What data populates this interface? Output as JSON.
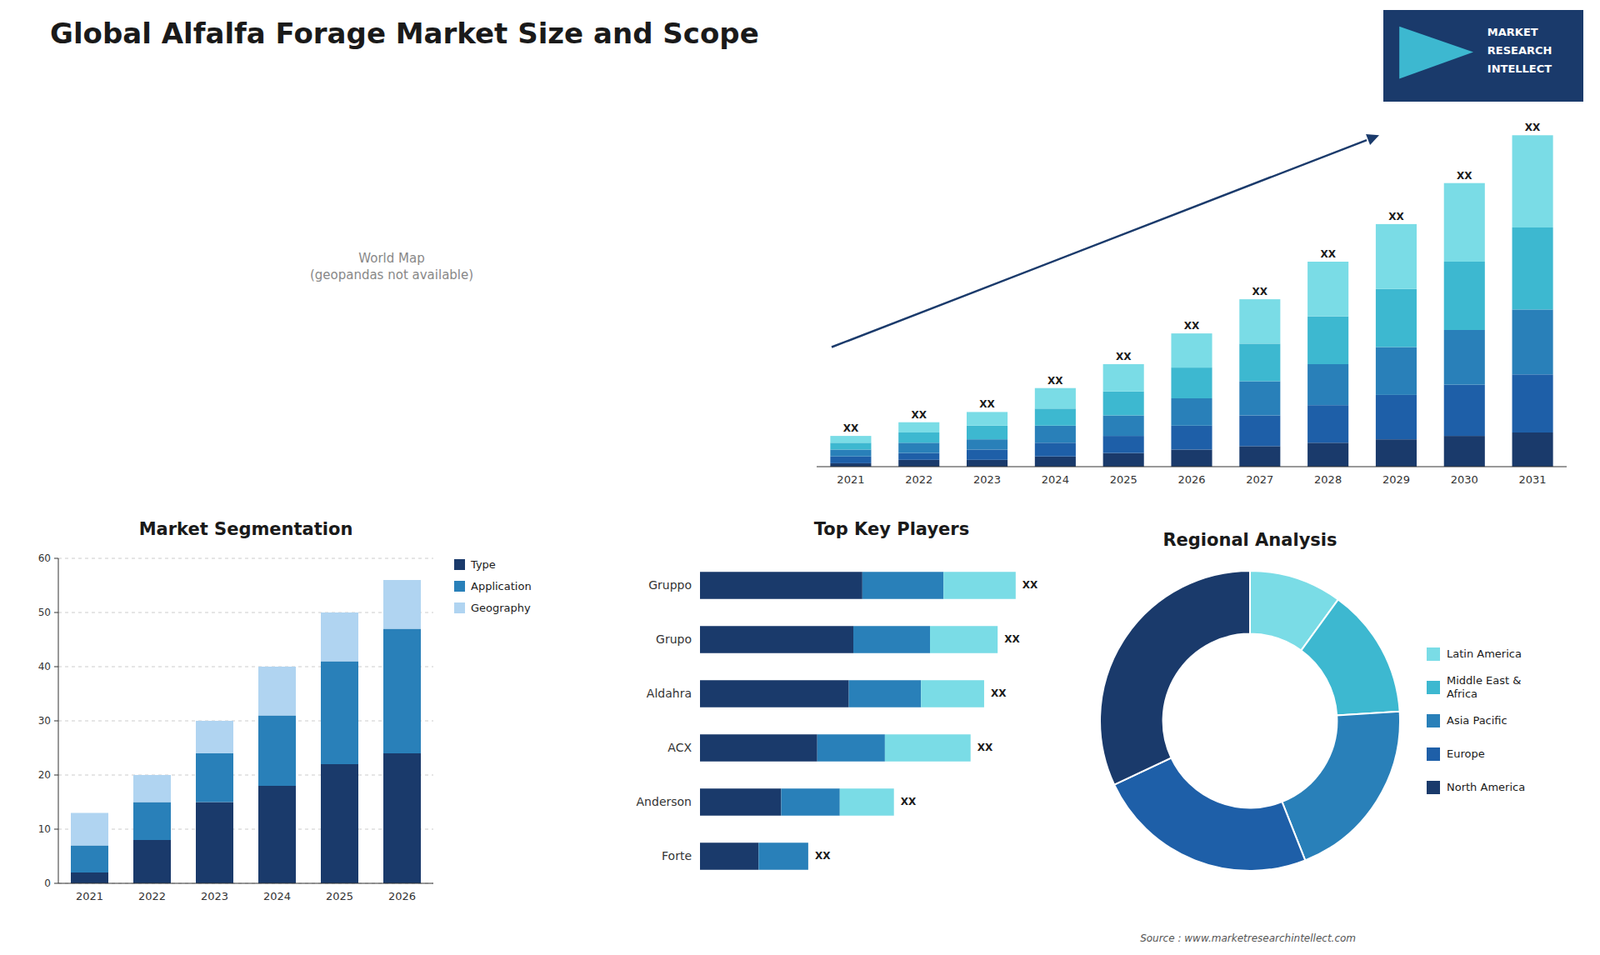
{
  "title": "Global  Alfalfa Forage Market Size and Scope",
  "annotations": [
    "Source : www.marketresearchintellect.com",
    "MARKET",
    "RESEARCH",
    "INTELLECT"
  ],
  "chart_data": [
    {
      "type": "bar",
      "stacked": true,
      "categories": [
        "2021",
        "2022",
        "2023",
        "2024",
        "2025",
        "2026",
        "2027",
        "2028",
        "2029",
        "2030",
        "2031"
      ],
      "series": [
        {
          "color": "#1a3a6b",
          "values": [
            1,
            2,
            2,
            3,
            4,
            5,
            6,
            7,
            8,
            9,
            10
          ]
        },
        {
          "color": "#1e5fa8",
          "values": [
            2,
            2,
            3,
            4,
            5,
            7,
            9,
            11,
            13,
            15,
            17
          ]
        },
        {
          "color": "#2980b9",
          "values": [
            2,
            3,
            3,
            5,
            6,
            8,
            10,
            12,
            14,
            16,
            19
          ]
        },
        {
          "color": "#3db8d0",
          "values": [
            2,
            3,
            4,
            5,
            7,
            9,
            11,
            14,
            17,
            20,
            24
          ]
        },
        {
          "color": "#7adce6",
          "values": [
            2,
            3,
            4,
            6,
            8,
            10,
            13,
            16,
            19,
            23,
            27
          ]
        }
      ],
      "ylim": [
        0,
        100
      ],
      "tick_labels": "x",
      "grid": false,
      "annotations": [
        "XX"
      ]
    },
    {
      "type": "map",
      "annotations": [
        "World Map\n(geopandas not available)"
      ]
    },
    {
      "type": "bar",
      "title": "Market Segmentation",
      "stacked": true,
      "categories": [
        "2021",
        "2022",
        "2023",
        "2024",
        "2025",
        "2026"
      ],
      "series": [
        {
          "name": "Type",
          "color": "#1a3a6b",
          "values": [
            2,
            8,
            15,
            18,
            22,
            24
          ]
        },
        {
          "name": "Application",
          "color": "#2980b9",
          "values": [
            5,
            7,
            9,
            13,
            19,
            23
          ]
        },
        {
          "name": "Geography",
          "color": "#b0d4f1",
          "values": [
            6,
            5,
            6,
            9,
            9,
            9
          ]
        }
      ],
      "ylim": [
        0,
        60
      ],
      "yticks": [
        0,
        10,
        20,
        30,
        40,
        50,
        60
      ],
      "grid": true,
      "legend": "right"
    },
    {
      "type": "bar",
      "title": "Top Key Players",
      "orientation": "horizontal",
      "stacked": true,
      "categories": [
        "Gruppo",
        "Grupo",
        "Aldahra",
        "ACX",
        "Anderson",
        "Forte"
      ],
      "series": [
        {
          "color": "#1a3a6b",
          "values": [
            36,
            34,
            33,
            26,
            18,
            13
          ]
        },
        {
          "color": "#2980b9",
          "values": [
            18,
            17,
            16,
            15,
            13,
            11
          ]
        },
        {
          "color": "#7adce6",
          "values": [
            16,
            15,
            14,
            19,
            12,
            0
          ]
        }
      ],
      "xlim": [
        0,
        85
      ],
      "tick_labels": "y",
      "grid": false,
      "annotations": [
        "XX"
      ]
    },
    {
      "type": "pie",
      "title": "Regional Analysis",
      "categories": [
        "Latin America",
        "Middle East &\nAfrica",
        "Asia Pacific",
        "Europe",
        "North America"
      ],
      "values": [
        10,
        14,
        20,
        24,
        32
      ],
      "colors": [
        "#7adce6",
        "#3db8d0",
        "#2980b9",
        "#1e5fa8",
        "#1a3a6b"
      ],
      "legend": "right"
    }
  ]
}
